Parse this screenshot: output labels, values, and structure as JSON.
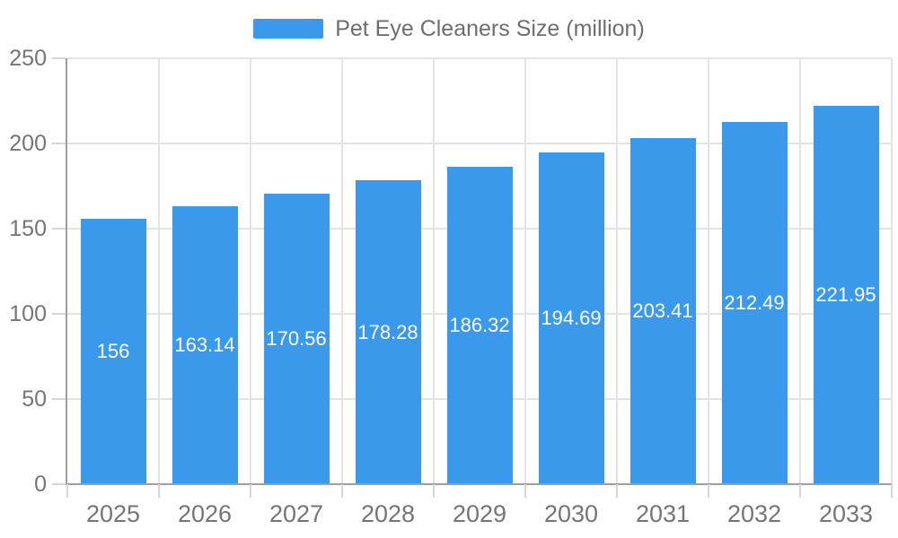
{
  "legend": {
    "label": "Pet Eye Cleaners Size (million)"
  },
  "chart_data": {
    "type": "bar",
    "title": "Pet Eye Cleaners Size (million)",
    "categories": [
      "2025",
      "2026",
      "2027",
      "2028",
      "2029",
      "2030",
      "2031",
      "2032",
      "2033"
    ],
    "series": [
      {
        "name": "Pet Eye Cleaners Size (million)",
        "values": [
          156,
          163.14,
          170.56,
          178.28,
          186.32,
          194.69,
          203.41,
          212.49,
          221.95
        ],
        "value_labels": [
          "156",
          "163.14",
          "170.56",
          "178.28",
          "186.32",
          "194.69",
          "203.41",
          "212.49",
          "221.95"
        ]
      }
    ],
    "xlabel": "",
    "ylabel": "",
    "ylim": [
      0,
      250
    ],
    "yticks": [
      0,
      50,
      100,
      150,
      200,
      250
    ],
    "ytick_labels": [
      "0",
      "50",
      "100",
      "150",
      "200",
      "250"
    ],
    "grid": true,
    "legend_position": "top",
    "value_label_position": "center-of-bar"
  },
  "colors": {
    "bar": "#3B99EC",
    "grid": "#E3E3E3",
    "axis": "#9E9E9E",
    "tick": "#D6D6D6",
    "tick_label": "#757575",
    "legend_text": "#6E6E6E",
    "value_label": "#FFFFFF",
    "background": "#FFFFFF"
  }
}
